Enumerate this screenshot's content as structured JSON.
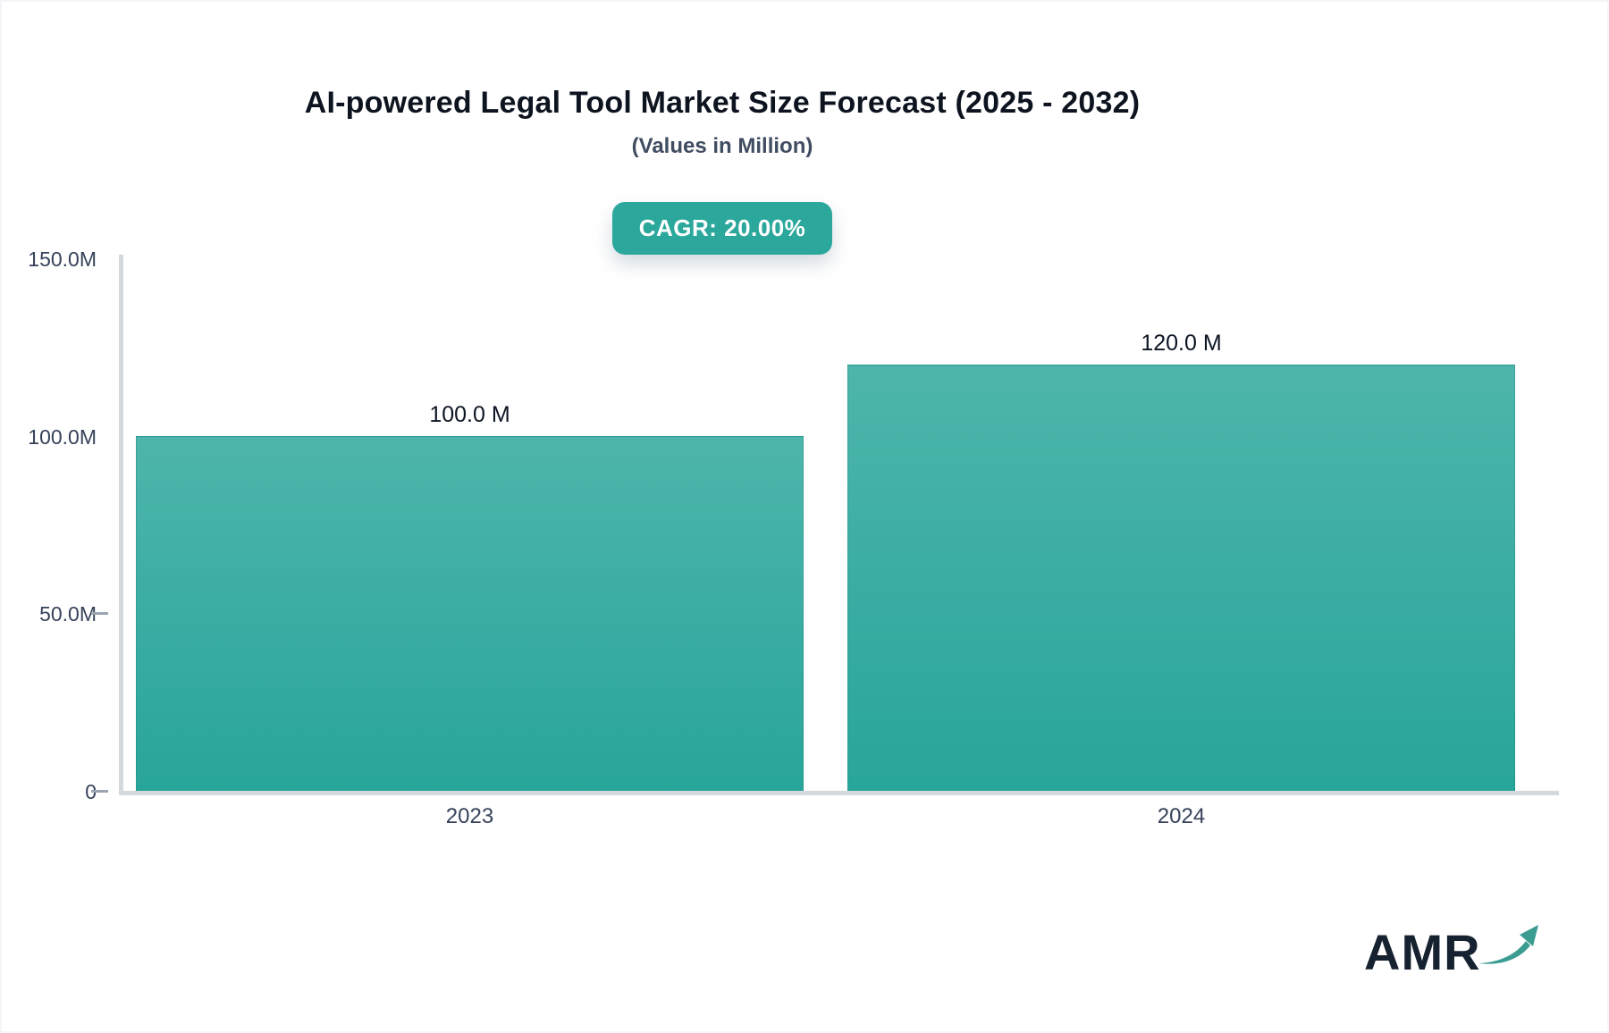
{
  "header": {
    "title": "AI-powered Legal Tool Market Size Forecast (2025 - 2032)",
    "subtitle": "(Values in Million)",
    "cagr_badge": "CAGR: 20.00%"
  },
  "chart_data": {
    "type": "bar",
    "title": "AI-powered Legal Tool Market Size Forecast (2025 - 2032)",
    "subtitle": "(Values in Million)",
    "cagr_percent": "20.00%",
    "categories": [
      "2023",
      "2024"
    ],
    "values": [
      100.0,
      120.0
    ],
    "value_labels": [
      "100.0 M",
      "120.0 M"
    ],
    "ylim": [
      0,
      150
    ],
    "yticks": [
      {
        "label": "150.0M",
        "value": 150,
        "dash": false
      },
      {
        "label": "100.0M",
        "value": 100,
        "dash": false
      },
      {
        "label": "50.0M",
        "value": 50,
        "dash": true
      },
      {
        "label": "0",
        "value": 0,
        "dash": true
      }
    ],
    "grid": false,
    "legend": "none",
    "bar_color_top": "#4eb5ac",
    "bar_color_bottom": "#28a59a"
  },
  "colors": {
    "badge_bg": "#2ba79c",
    "badge_text": "#ffffff",
    "axis_line": "#d5d8de",
    "tick_text": "#36425a",
    "value_text": "#0c1523",
    "title_text": "#0d1420",
    "subtitle_text": "#3f4c61",
    "logo_text": "#16222f",
    "logo_arrow": "#3b9c91"
  },
  "logo": {
    "text": "AMR"
  }
}
